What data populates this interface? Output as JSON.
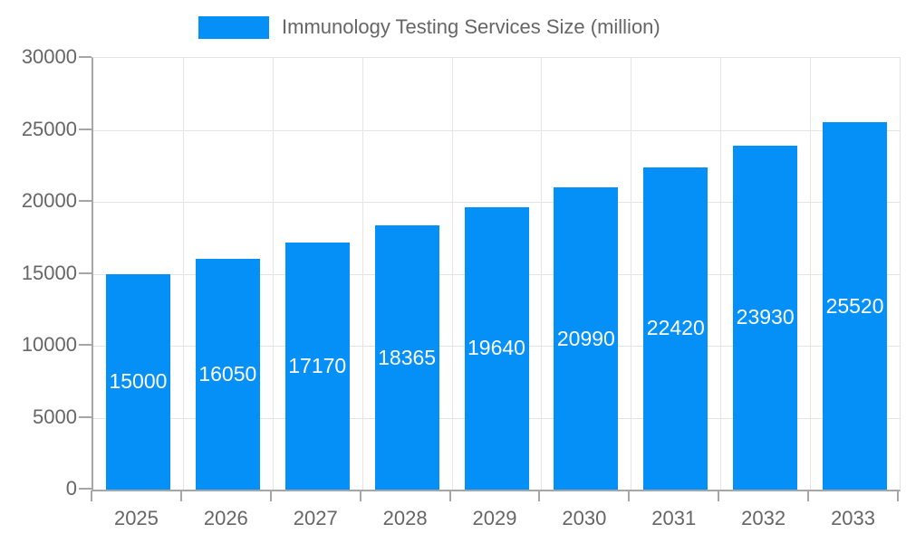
{
  "legend": {
    "label": "Immunology Testing Services Size (million)"
  },
  "chart_data": {
    "type": "bar",
    "title": "Immunology Testing Services Size (million)",
    "categories": [
      "2025",
      "2026",
      "2027",
      "2028",
      "2029",
      "2030",
      "2031",
      "2032",
      "2033"
    ],
    "values": [
      15000,
      16050,
      17170,
      18365,
      19640,
      20990,
      22420,
      23930,
      25520
    ],
    "xlabel": "",
    "ylabel": "",
    "ylim": [
      0,
      30000
    ],
    "yticks": [
      0,
      5000,
      10000,
      15000,
      20000,
      25000,
      30000
    ],
    "grid": true,
    "legend_position": "top-center",
    "value_labels": "inside-center",
    "colors": {
      "bar": "#0590f8",
      "value_label_text": "#ffffff",
      "axis_text": "#666666",
      "grid_line": "#e3e3e3",
      "axis_line": "#a6a6a6",
      "background": "#ffffff"
    }
  }
}
